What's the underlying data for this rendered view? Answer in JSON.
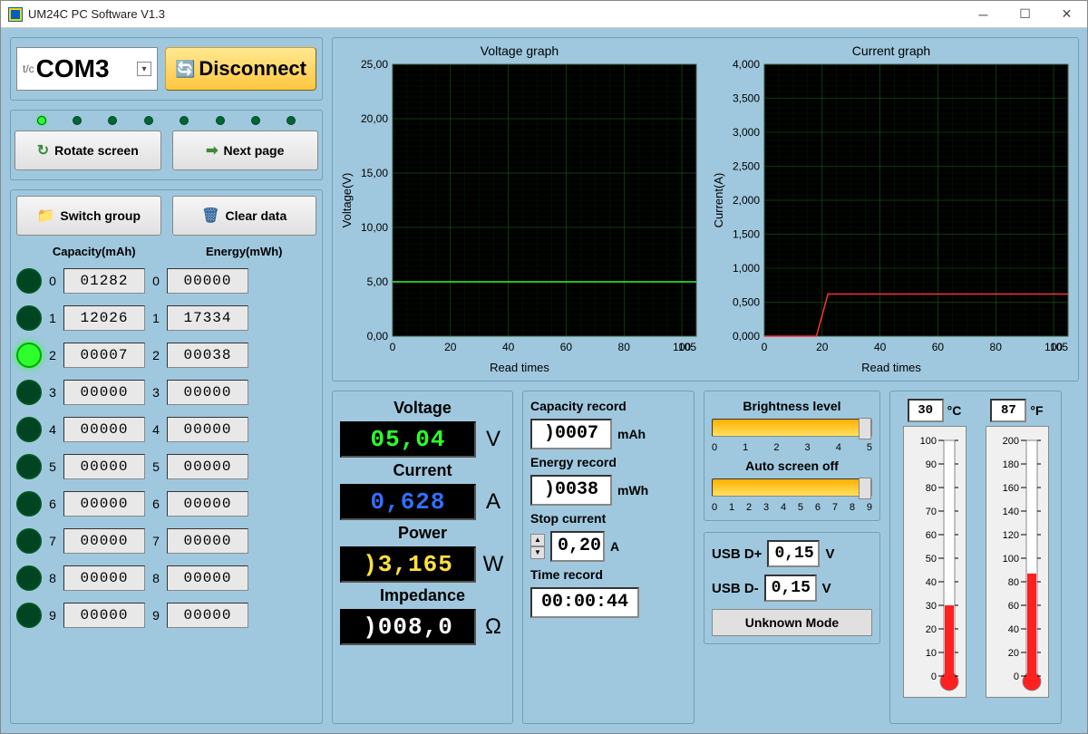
{
  "window": {
    "title": "UM24C PC Software V1.3"
  },
  "colors": {
    "bg_app": "#9fc8de",
    "chart_bg": "#000000",
    "chart_grid": "#1a6b1a",
    "voltage_line": "#2cff2c",
    "current_line": "#ff3030",
    "thermo_fill": "#ff2020"
  },
  "port": {
    "value": "COM3",
    "disconnect_label": "Disconnect"
  },
  "buttons": {
    "rotate": "Rotate screen",
    "next": "Next page",
    "switch": "Switch group",
    "clear": "Clear data"
  },
  "status_leds": {
    "count": 8,
    "lit": [
      0
    ]
  },
  "table": {
    "header_capacity": "Capacity(mAh)",
    "header_energy": "Energy(mWh)",
    "active_index": 2,
    "rows": [
      {
        "i": 0,
        "cap": "01282",
        "en": "00000"
      },
      {
        "i": 1,
        "cap": "12026",
        "en": "17334"
      },
      {
        "i": 2,
        "cap": "00007",
        "en": "00038"
      },
      {
        "i": 3,
        "cap": "00000",
        "en": "00000"
      },
      {
        "i": 4,
        "cap": "00000",
        "en": "00000"
      },
      {
        "i": 5,
        "cap": "00000",
        "en": "00000"
      },
      {
        "i": 6,
        "cap": "00000",
        "en": "00000"
      },
      {
        "i": 7,
        "cap": "00000",
        "en": "00000"
      },
      {
        "i": 8,
        "cap": "00000",
        "en": "00000"
      },
      {
        "i": 9,
        "cap": "00000",
        "en": "00000"
      }
    ]
  },
  "voltage_chart": {
    "title": "Voltage graph",
    "ylabel": "Voltage(V)",
    "xlabel": "Read times",
    "ylim": [
      0,
      25
    ],
    "ytick_step": 5,
    "xlim": [
      0,
      105
    ],
    "xtick_step": 20,
    "line_y": 5.0
  },
  "current_chart": {
    "title": "Current graph",
    "ylabel": "Current(A)",
    "xlabel": "Read times",
    "ylim": [
      0,
      4
    ],
    "ytick_step": 0.5,
    "xlim": [
      0,
      105
    ],
    "xtick_step": 20,
    "series": [
      [
        0,
        0
      ],
      [
        18,
        0
      ],
      [
        22,
        0.62
      ],
      [
        105,
        0.62
      ]
    ]
  },
  "measure": {
    "voltage_label": "Voltage",
    "voltage": "05,04",
    "voltage_unit": "V",
    "current_label": "Current",
    "current": "0,628",
    "current_unit": "A",
    "power_label": "Power",
    "power": ")3,165",
    "power_unit": "W",
    "impedance_label": "Impedance",
    "impedance": ")008,0",
    "impedance_unit": "Ω"
  },
  "record": {
    "capacity_label": "Capacity record",
    "capacity": ")0007",
    "capacity_unit": "mAh",
    "energy_label": "Energy record",
    "energy": ")0038",
    "energy_unit": "mWh",
    "stop_label": "Stop current",
    "stop": "0,20",
    "stop_unit": "A",
    "time_label": "Time record",
    "time": "00:00:44"
  },
  "brightness": {
    "label": "Brightness level",
    "ticks": [
      "0",
      "1",
      "2",
      "3",
      "4",
      "5"
    ],
    "value": 5
  },
  "autoscreen": {
    "label": "Auto screen off",
    "ticks": [
      "0",
      "1",
      "2",
      "3",
      "4",
      "5",
      "6",
      "7",
      "8",
      "9"
    ],
    "value": 9
  },
  "usb": {
    "dp_label": "USB D+",
    "dp": "0,15",
    "unit": "V",
    "dm_label": "USB D-",
    "dm": "0,15",
    "mode": "Unknown Mode"
  },
  "temp": {
    "c_val": "30",
    "c_unit": "°C",
    "c_range": [
      0,
      100
    ],
    "c_fill": 30,
    "f_val": "87",
    "f_unit": "°F",
    "f_range": [
      0,
      200
    ],
    "f_fill": 87
  }
}
